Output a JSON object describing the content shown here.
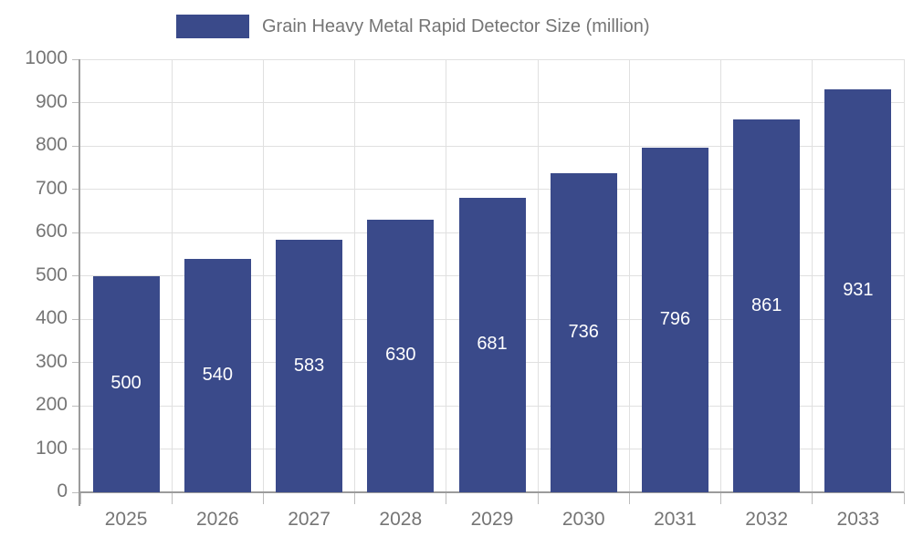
{
  "chart_data": {
    "type": "bar",
    "title": "",
    "xlabel": "",
    "ylabel": "",
    "series_name": "Grain Heavy Metal Rapid Detector Size (million)",
    "categories": [
      "2025",
      "2026",
      "2027",
      "2028",
      "2029",
      "2030",
      "2031",
      "2032",
      "2033"
    ],
    "values": [
      500,
      540,
      583,
      630,
      681,
      736,
      796,
      861,
      931
    ],
    "value_labels": [
      "500",
      "540",
      "583",
      "630",
      "681",
      "736",
      "796",
      "861",
      "931"
    ],
    "ylim": [
      0,
      1000
    ],
    "ytick_interval": 100,
    "ytick_labels": [
      "0",
      "100",
      "200",
      "300",
      "400",
      "500",
      "600",
      "700",
      "800",
      "900",
      "1000"
    ],
    "grid": true,
    "legend_position": "top",
    "colors": {
      "bar": "#3a4a8a",
      "bar_label": "#ffffff",
      "axis_text": "#757575",
      "grid_line": "#e0e0e0",
      "axis_line": "#9b9b9b",
      "tick_mark": "#bdbdbd",
      "background": "#ffffff"
    }
  }
}
